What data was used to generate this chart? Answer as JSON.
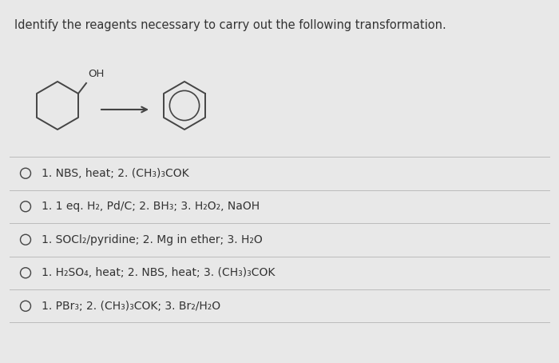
{
  "title": "Identify the reagents necessary to carry out the following transformation.",
  "background_color": "#e8e8e8",
  "options": [
    "1. NBS, heat; 2. (CH₃)₃COK",
    "1. 1 eq. H₂, Pd/C; 2. BH₃; 3. H₂O₂, NaOH",
    "1. SOCl₂/pyridine; 2. Mg in ether; 3. H₂O",
    "1. H₂SO₄, heat; 2. NBS, heat; 3. (CH₃)₃COK",
    "1. PBr₃; 2. (CH₃)₃COK; 3. Br₂/H₂O"
  ],
  "title_fontsize": 10.5,
  "option_fontsize": 10,
  "text_color": "#333333",
  "line_color": "#bbbbbb",
  "mol_color": "#444444",
  "fig_width": 7.0,
  "fig_height": 4.54,
  "dpi": 100
}
